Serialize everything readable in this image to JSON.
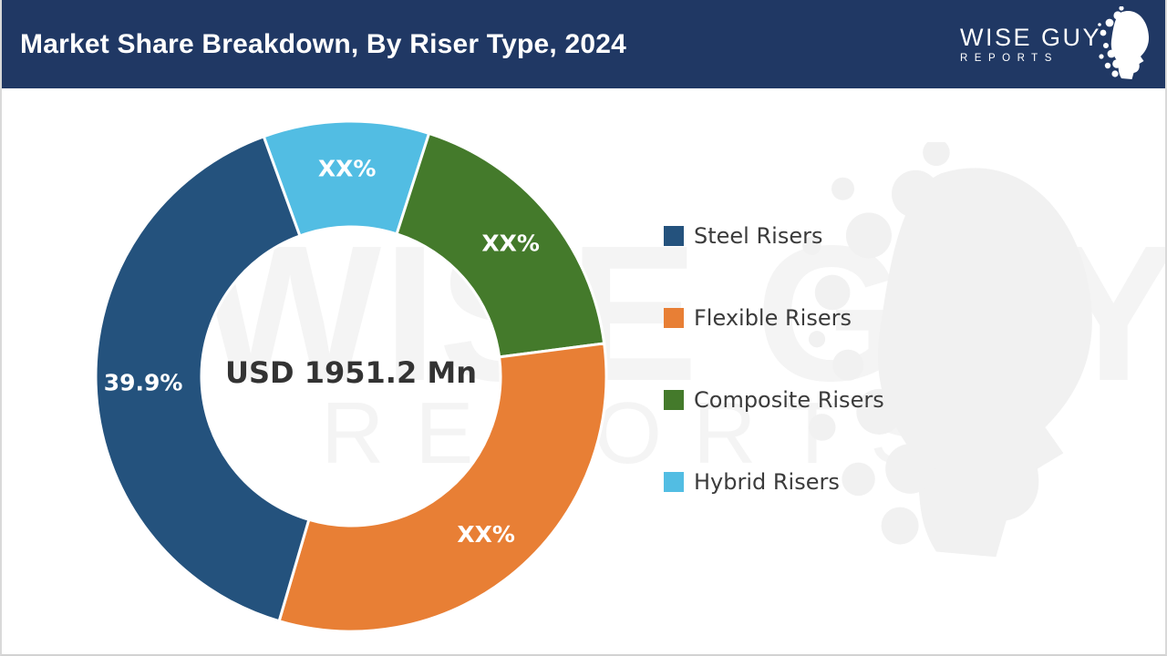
{
  "header": {
    "title": "Market Share Breakdown, By Riser Type, 2024",
    "bg_color": "#203864",
    "logo": {
      "line1": "WISE GUY",
      "line2": "REPORTS"
    }
  },
  "watermark": {
    "line1": "WISE GUY",
    "line2": "REPORTS"
  },
  "chart_data": {
    "type": "donut",
    "title": "Market Share Breakdown, By Riser Type, 2024",
    "center_label": "USD 1951.2 Mn",
    "start_angle_deg": -20,
    "outer_radius": 280,
    "inner_radius": 164,
    "label_radius": 228,
    "segments": [
      {
        "name": "Hybrid Risers",
        "label": "XX%",
        "pct": 10.5,
        "color": "#52bde3"
      },
      {
        "name": "Composite Risers",
        "label": "XX%",
        "pct": 18.0,
        "color": "#447a2b"
      },
      {
        "name": "Flexible Risers",
        "label": "XX%",
        "pct": 31.6,
        "color": "#e87f35"
      },
      {
        "name": "Steel Risers",
        "label": "39.9%",
        "pct": 39.9,
        "color": "#24527d"
      }
    ],
    "legend_position": "right",
    "legend": [
      {
        "label": "Steel Risers",
        "color": "#24527d"
      },
      {
        "label": "Flexible Risers",
        "color": "#e87f35"
      },
      {
        "label": "Composite Risers",
        "color": "#447a2b"
      },
      {
        "label": "Hybrid Risers",
        "color": "#52bde3"
      }
    ]
  }
}
